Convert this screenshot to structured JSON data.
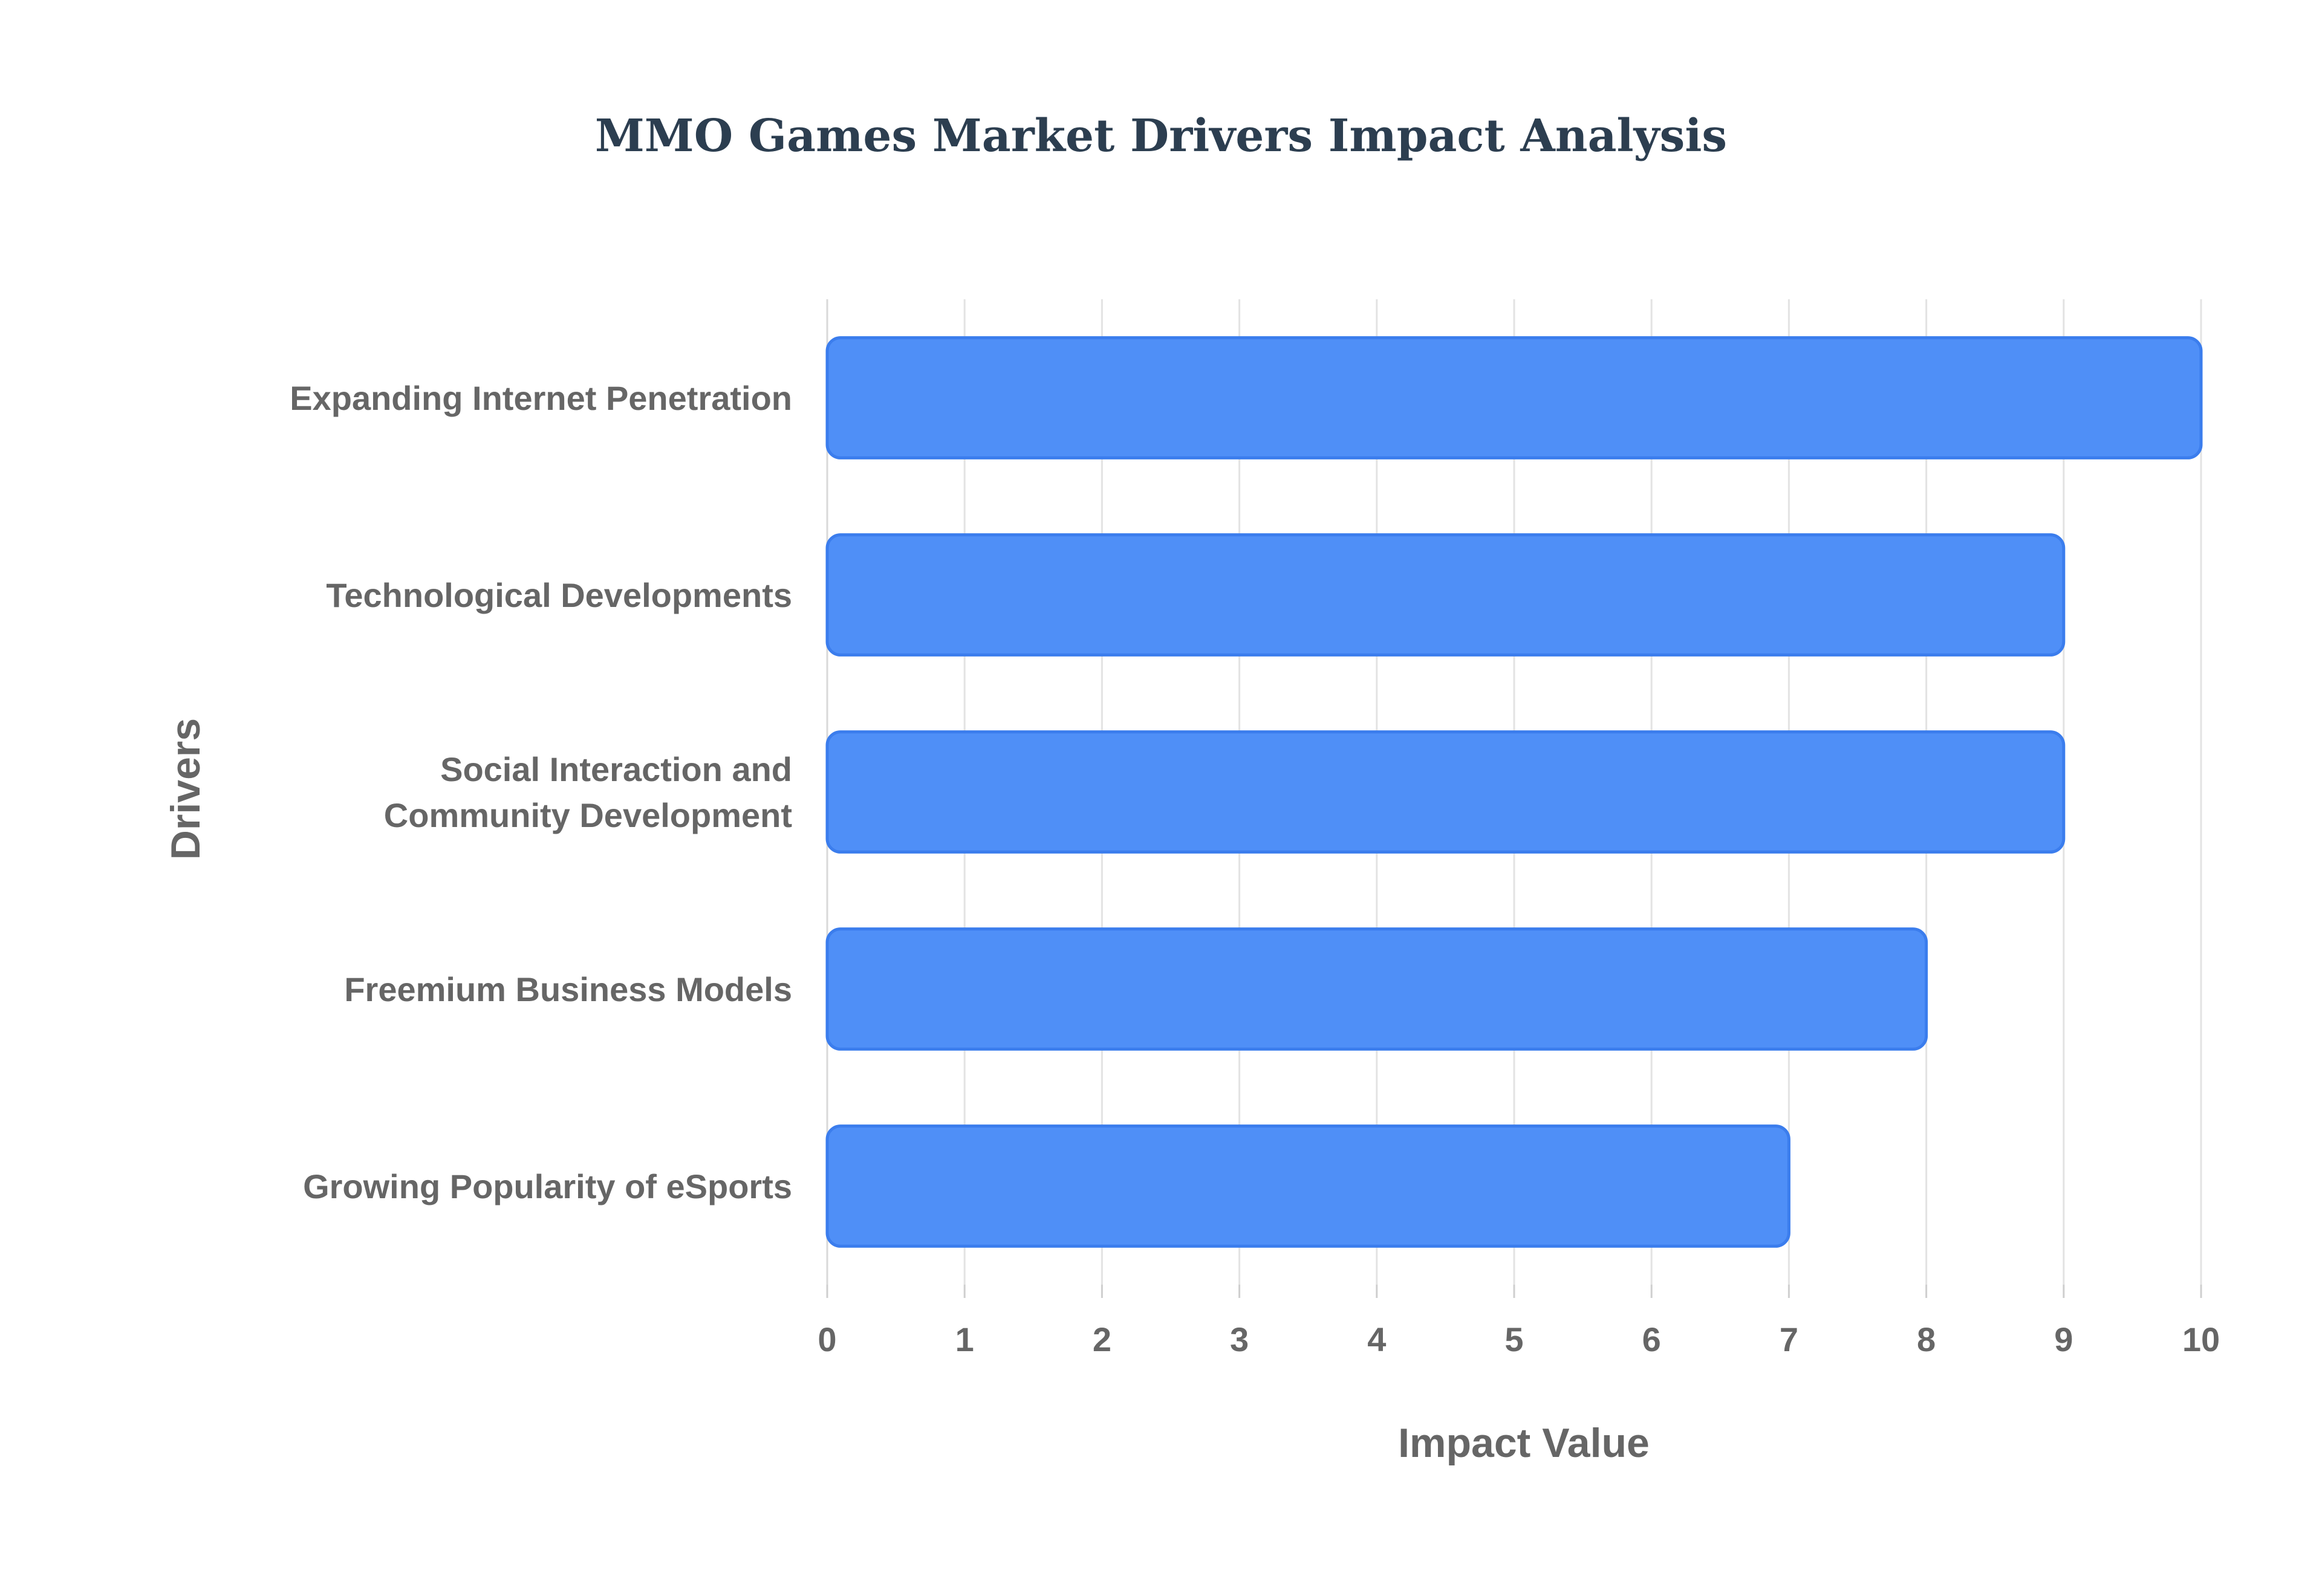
{
  "chart_data": {
    "type": "bar",
    "orientation": "horizontal",
    "title": "MMO Games Market Drivers Impact Analysis",
    "xlabel": "Impact Value",
    "ylabel": "Drivers",
    "categories": [
      [
        "Expanding Internet Penetration"
      ],
      [
        "Technological Developments"
      ],
      [
        "Social Interaction and",
        "Community Development"
      ],
      [
        "Freemium Business Models"
      ],
      [
        "Growing Popularity of eSports"
      ]
    ],
    "values": [
      10,
      9,
      9,
      8,
      7
    ],
    "xlim": [
      0,
      10
    ],
    "xticks": [
      "0",
      "1",
      "2",
      "3",
      "4",
      "5",
      "6",
      "7",
      "8",
      "9",
      "10"
    ],
    "grid": true,
    "colors": {
      "bar_fill": "#4f8ff7",
      "bar_stroke": "#3b7ded",
      "title": "#2c3e50",
      "text": "#666666"
    }
  }
}
